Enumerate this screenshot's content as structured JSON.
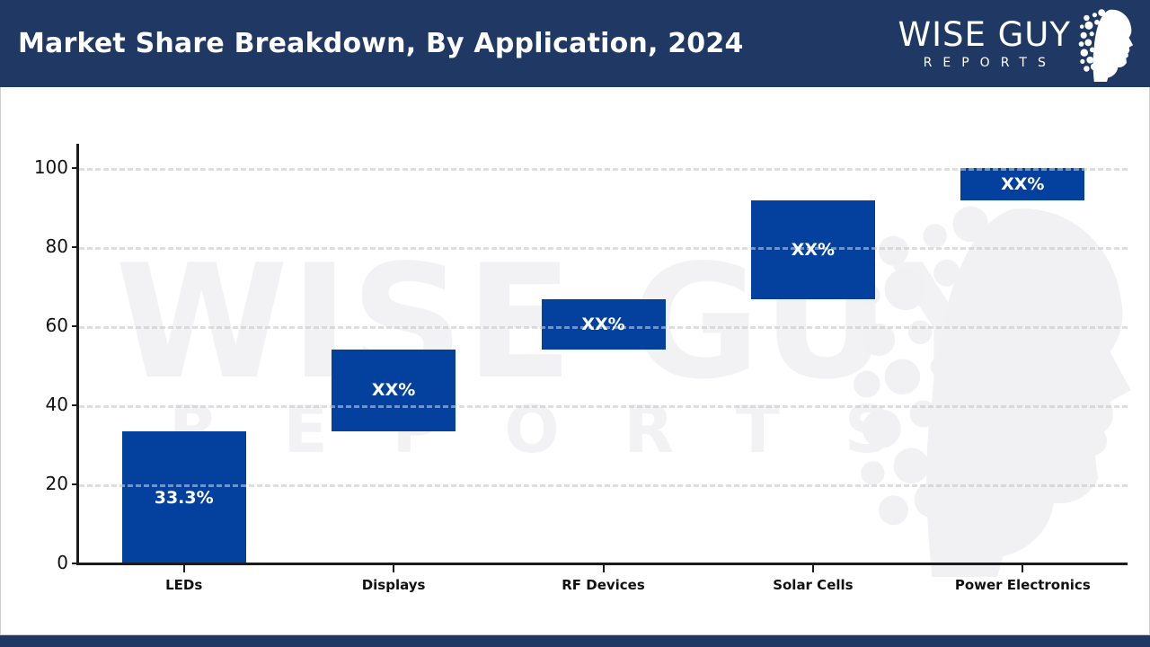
{
  "header": {
    "title": "Market Share Breakdown, By Application, 2024",
    "logo": {
      "line1": "WISE GUY",
      "line2": "REPORTS"
    }
  },
  "watermark": {
    "line1": "WISE GUY",
    "line2": "REPORTS"
  },
  "chart_data": {
    "type": "bar",
    "subtype": "waterfall",
    "title": "Market Share Breakdown, By Application, 2024",
    "categories": [
      "LEDs",
      "Displays",
      "RF Devices",
      "Solar Cells",
      "Power Electronics"
    ],
    "segments": [
      {
        "category": "LEDs",
        "start": 0,
        "end": 33.3,
        "label": "33.3%"
      },
      {
        "category": "Displays",
        "start": 33.3,
        "end": 54.2,
        "label": "XX%"
      },
      {
        "category": "RF Devices",
        "start": 54.2,
        "end": 66.8,
        "label": "XX%"
      },
      {
        "category": "Solar Cells",
        "start": 66.8,
        "end": 91.8,
        "label": "XX%"
      },
      {
        "category": "Power Electronics",
        "start": 91.8,
        "end": 100,
        "label": "XX%"
      }
    ],
    "ylim": [
      0,
      100
    ],
    "yticks": [
      0,
      20,
      40,
      60,
      80,
      100
    ],
    "xlabel": "",
    "ylabel": "",
    "grid": "horizontal-dashed",
    "legend": null
  },
  "colors": {
    "header_bg": "#1f3864",
    "footer_bg": "#1f3864",
    "bar": "#04419f",
    "axis": "#1c1c1c",
    "grid": "#d9d9d9",
    "watermark": "#f2f2f4",
    "title_text": "#ffffff",
    "bar_label_text": "#ffffff"
  }
}
